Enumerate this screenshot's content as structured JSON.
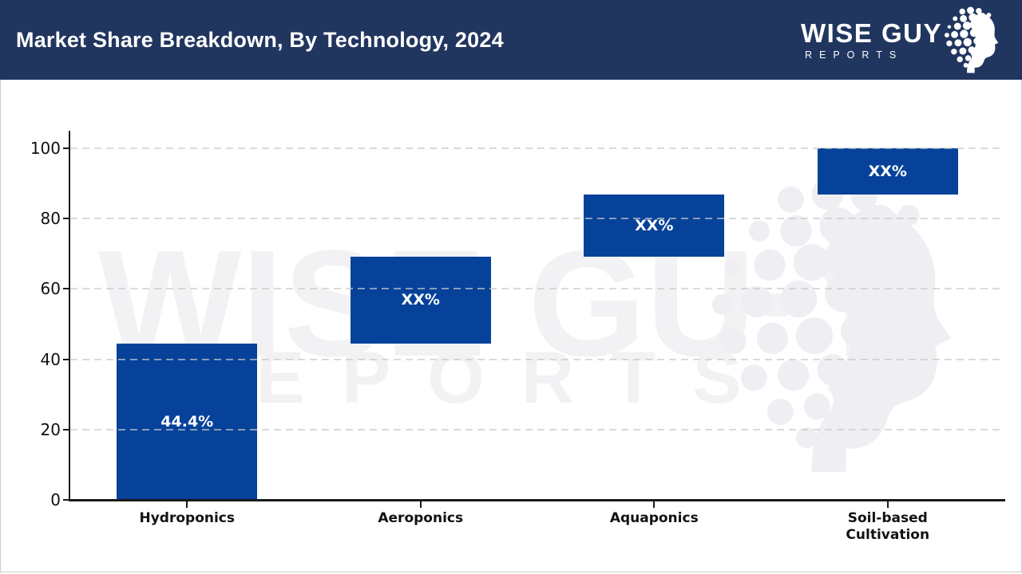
{
  "header": {
    "title": "Market Share Breakdown, By Technology, 2024",
    "logo": {
      "line1": "WISE GUY",
      "line2": "REPORTS"
    }
  },
  "watermark": {
    "big_text": "WISE GU·Y",
    "small_text": "REPORTS"
  },
  "chart_data": {
    "type": "bar",
    "variant": "waterfall-segments",
    "title": "Market Share Breakdown, By Technology, 2024",
    "categories": [
      "Hydroponics",
      "Aeroponics",
      "Aquaponics",
      "Soil-based Cultivation"
    ],
    "segments": [
      {
        "label": "Hydroponics",
        "start": 0,
        "end": 44.4,
        "value_label": "44.4%"
      },
      {
        "label": "Aeroponics",
        "start": 44.4,
        "end": 69.2,
        "value_label": "XX%"
      },
      {
        "label": "Aquaponics",
        "start": 69.2,
        "end": 86.8,
        "value_label": "XX%"
      },
      {
        "label": "Soil-based Cultivation",
        "start": 86.8,
        "end": 100.0,
        "value_label": "XX%"
      }
    ],
    "xlabel": "",
    "ylabel": "",
    "ylim": [
      0,
      105
    ],
    "yticks": [
      0,
      20,
      40,
      60,
      80,
      100
    ],
    "grid": "horizontal-dashed",
    "legend": null,
    "bar_color": "#06429a",
    "bar_label_color": "#ffffff"
  },
  "colors": {
    "header_bg": "#21365f",
    "bar": "#06429a",
    "axis": "#1a1a1a",
    "grid": "#d9d9d9",
    "watermark": "#f2f2f5",
    "title_text": "#ffffff"
  }
}
